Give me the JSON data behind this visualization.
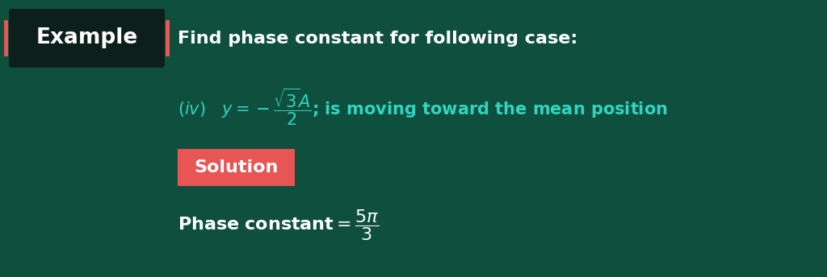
{
  "bg_color": "#0e4f3d",
  "title_text": "Find phase constant for following case:",
  "example_label": "Example",
  "example_bg": "#0d1f1a",
  "example_text_color": "#ffffff",
  "accent_color": "#e85555",
  "bar_color": "#e85555",
  "teal_color": "#30d5c0",
  "white_color": "#ffffff",
  "solution_text": "Solution",
  "figsize": [
    10.24,
    3.44
  ],
  "dpi": 100
}
